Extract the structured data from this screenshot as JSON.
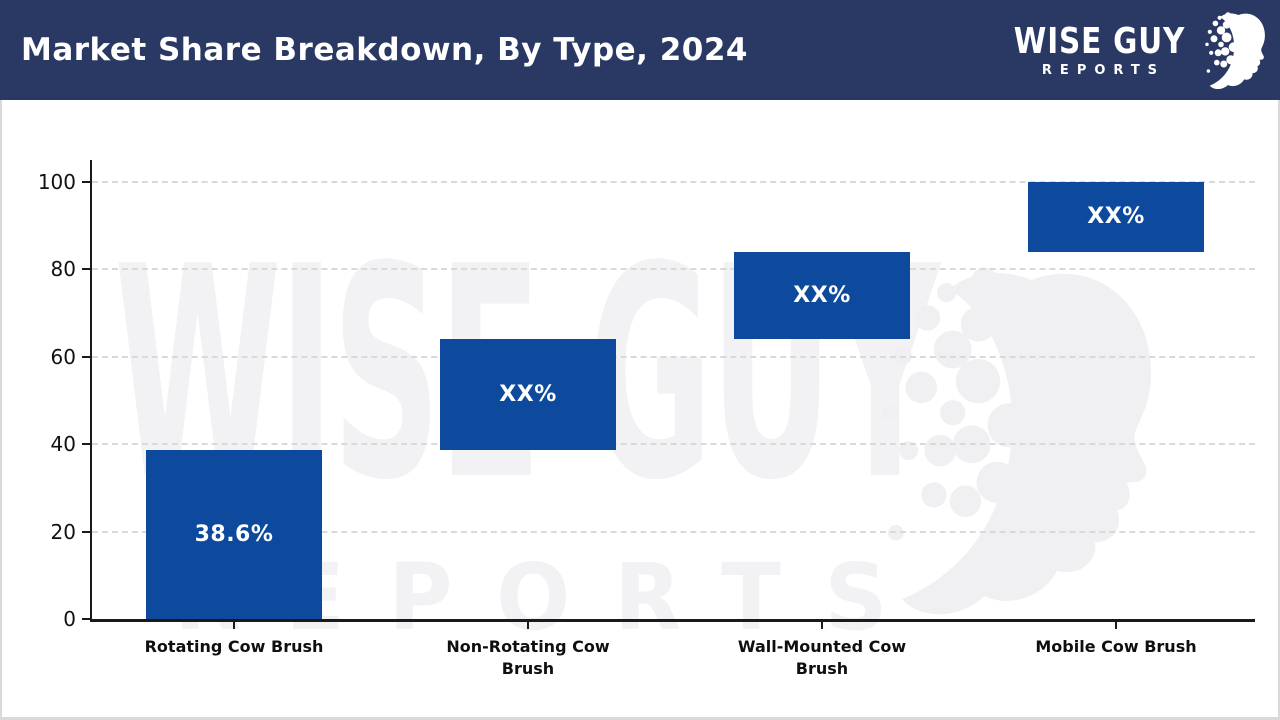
{
  "header": {
    "title": "Market Share Breakdown, By Type, 2024",
    "bg_color": "#293963",
    "logo": {
      "line1": "WISE GUY",
      "line2": "REPORTS",
      "icon": "dotted-face-profile"
    }
  },
  "watermark": {
    "line1": "WISE GUY",
    "line2": "REPORTS",
    "icon": "dotted-face-profile",
    "color": "#f2f2f4"
  },
  "chart_data": {
    "type": "bar",
    "variant": "waterfall (floating stacked segments)",
    "title": "Market Share Breakdown, By Type, 2024",
    "categories": [
      "Rotating Cow Brush",
      "Non-Rotating Cow Brush",
      "Wall-Mounted Cow Brush",
      "Mobile Cow Brush"
    ],
    "category_lines": [
      [
        "Rotating Cow Brush"
      ],
      [
        "Non-Rotating Cow",
        "Brush"
      ],
      [
        "Wall-Mounted Cow",
        "Brush"
      ],
      [
        "Mobile Cow Brush"
      ]
    ],
    "segments": [
      {
        "category": "Rotating Cow Brush",
        "start": 0,
        "end": 38.6,
        "label": "38.6%"
      },
      {
        "category": "Non-Rotating Cow Brush",
        "start": 38.6,
        "end": 64,
        "label": "XX%"
      },
      {
        "category": "Wall-Mounted Cow Brush",
        "start": 64,
        "end": 84,
        "label": "XX%"
      },
      {
        "category": "Mobile Cow Brush",
        "start": 84,
        "end": 100,
        "label": "XX%"
      }
    ],
    "xlabel": "",
    "ylabel": "",
    "ylim": [
      0,
      100
    ],
    "yticks": [
      0,
      20,
      40,
      60,
      80,
      100
    ],
    "grid": "horizontal dashed",
    "legend": "none",
    "bar_color": "#0d4a9e",
    "bar_label_color": "#ffffff",
    "axis_color": "#1a1a1a"
  }
}
